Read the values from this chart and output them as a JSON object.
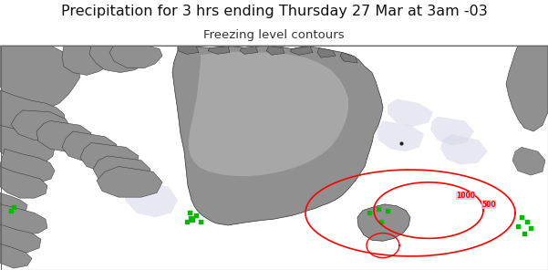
{
  "title": "Precipitation for 3 hrs ending Thursday 27 Mar at 3am -03",
  "subtitle": "Freezing level contours",
  "title_fontsize": 11.5,
  "subtitle_fontsize": 9.5,
  "title_color": "#111111",
  "subtitle_color": "#333333",
  "bg_color": "#ffffff",
  "fig_width": 6.01,
  "fig_height": 2.96,
  "dpi": 100,
  "ocean_color": "#c8cce0",
  "land_dark": "#7a7a7a",
  "land_mid": "#909090",
  "land_light": "#b0b2b0",
  "ice_color": "#aaaaaa",
  "contour_color": "#ff0000",
  "green_color": "#00bb00",
  "sea_ice_color": "#d8daea",
  "border_color": "#888888"
}
